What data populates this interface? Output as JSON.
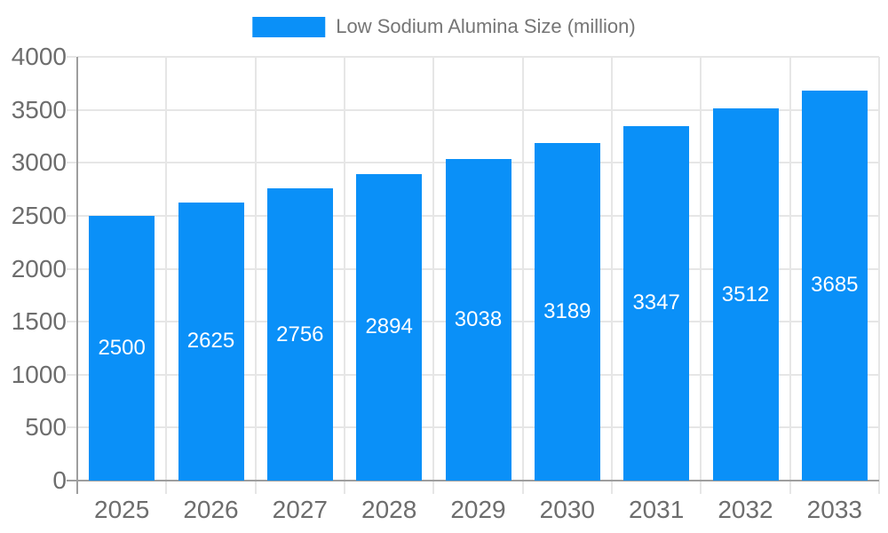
{
  "legend": {
    "label": "Low Sodium Alumina Size (million)"
  },
  "colors": {
    "background": "#ffffff",
    "bar": "#0a90f8",
    "grid": "#e6e6e6",
    "axis": "#9e9e9e",
    "axis_text": "#6d6d6d",
    "legend_text": "#757575",
    "bar_label": "#ffffff"
  },
  "chart_data": {
    "type": "bar",
    "title": "Low Sodium Alumina Size (million)",
    "categories": [
      "2025",
      "2026",
      "2027",
      "2028",
      "2029",
      "2030",
      "2031",
      "2032",
      "2033"
    ],
    "values": [
      2500,
      2625,
      2756,
      2894,
      3038,
      3189,
      3347,
      3512,
      3685
    ],
    "xlabel": "",
    "ylabel": "",
    "ylim": [
      0,
      4000
    ],
    "ytick_labels": [
      0,
      500,
      1000,
      1500,
      2000,
      2500,
      3000,
      3500,
      4000
    ],
    "grid": true,
    "legend_position": "top",
    "data_labels": "inside-center"
  }
}
